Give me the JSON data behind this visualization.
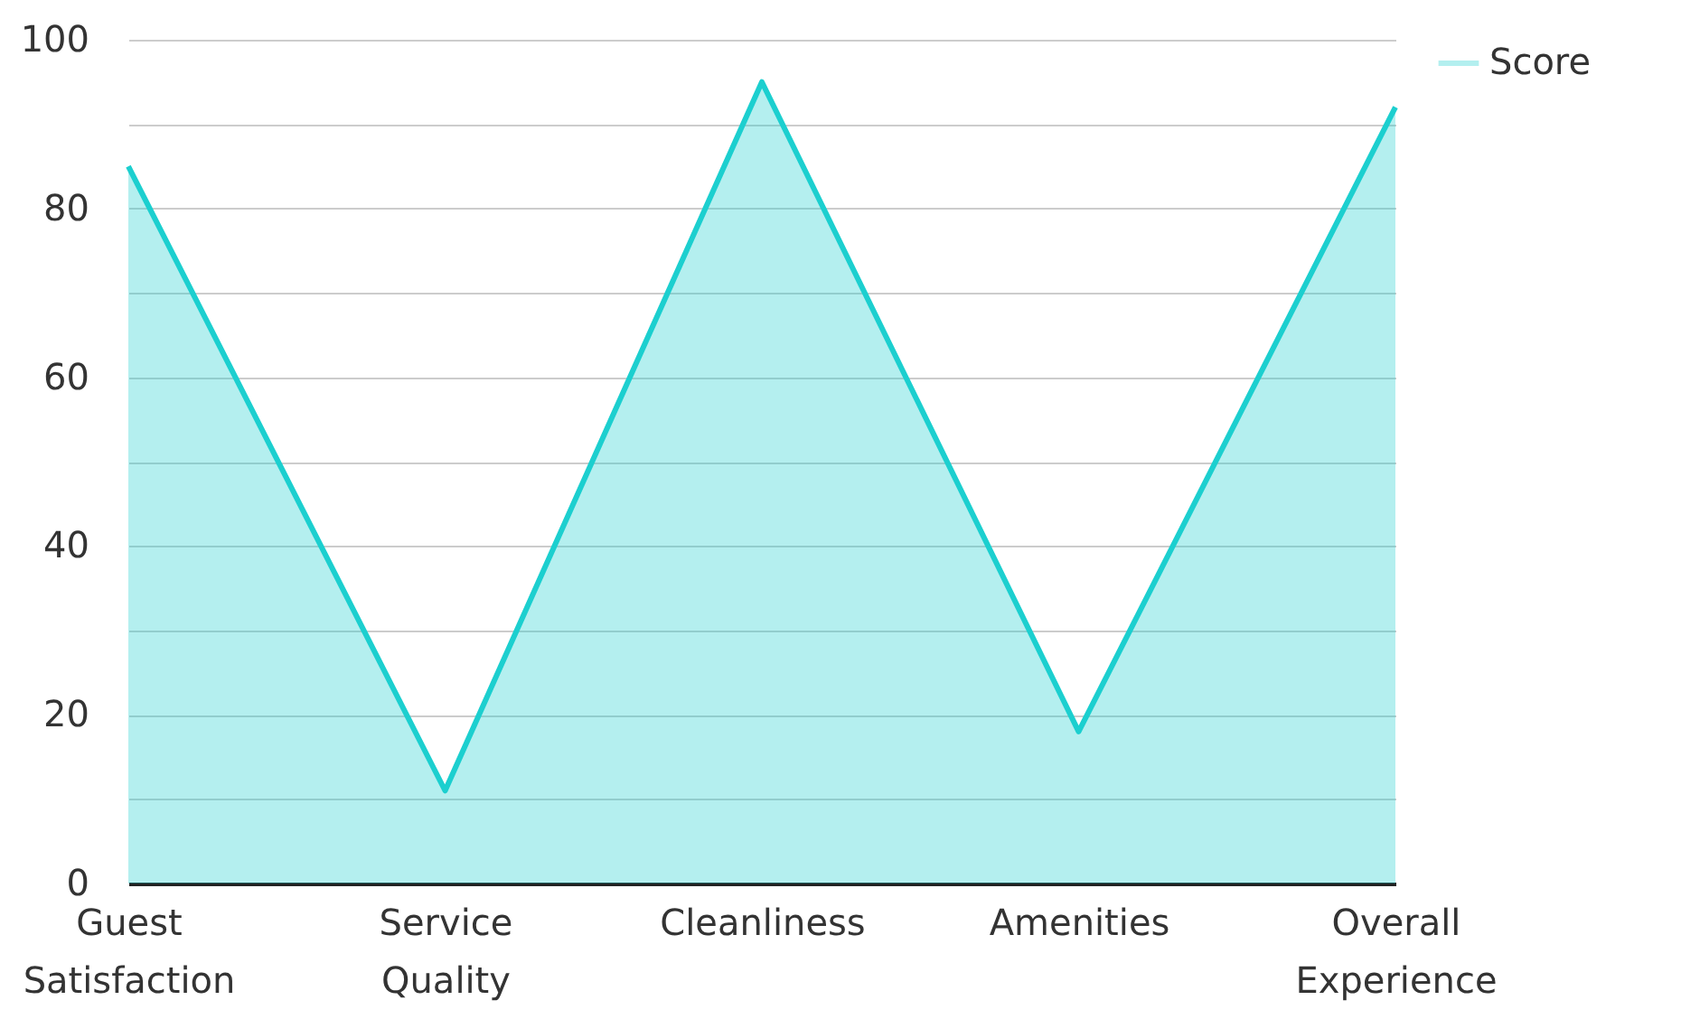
{
  "chart_data": {
    "type": "area",
    "categories": [
      "Guest Satisfaction",
      "Service Quality",
      "Cleanliness",
      "Amenities",
      "Overall Experience"
    ],
    "series": [
      {
        "name": "Score",
        "color": "#1ccfcf",
        "values": [
          85,
          11,
          95,
          18,
          92
        ]
      }
    ],
    "ylim": [
      0,
      100
    ],
    "yticks": [
      0,
      {
        "value": 10,
        "label": null
      },
      20,
      {
        "value": 30,
        "label": null
      },
      40,
      {
        "value": 50,
        "label": null
      },
      60,
      {
        "value": 70,
        "label": null
      },
      80,
      {
        "value": 90,
        "label": null
      },
      100
    ],
    "grid": "y",
    "legend": "top right"
  }
}
